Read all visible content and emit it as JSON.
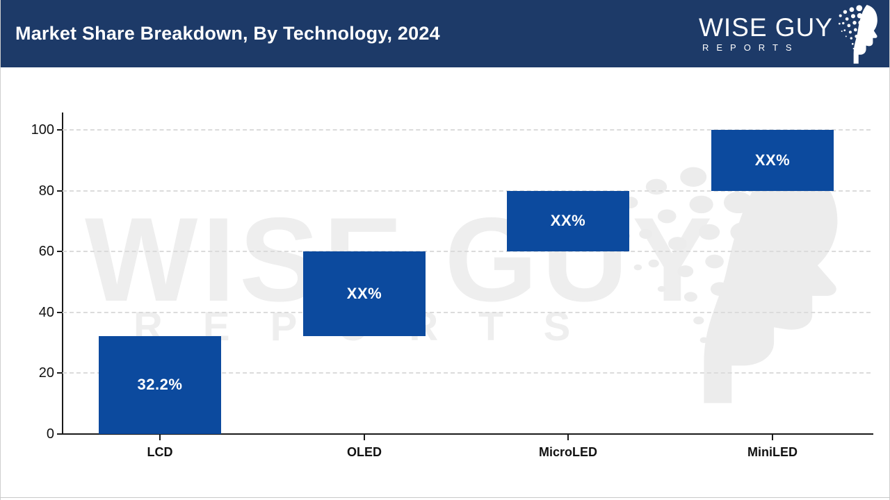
{
  "header": {
    "title": "Market Share Breakdown, By Technology, 2024",
    "background_color": "#1d3a68",
    "logo": {
      "name": "WISE GUY",
      "subtitle": "REPORTS",
      "icon": "dotted-head-profile"
    }
  },
  "watermark": {
    "line1": "WISE GUY",
    "line2": "REPORTS",
    "color": "#eeeeee"
  },
  "chart_data": {
    "type": "bar",
    "variant": "waterfall",
    "title": "Market Share Breakdown, By Technology, 2024",
    "categories": [
      "LCD",
      "OLED",
      "MicroLED",
      "MiniLED"
    ],
    "segments": [
      {
        "category": "LCD",
        "start": 0,
        "end": 32.2,
        "label": "32.2%"
      },
      {
        "category": "OLED",
        "start": 32.2,
        "end": 60,
        "label": "XX%"
      },
      {
        "category": "MicroLED",
        "start": 60,
        "end": 80,
        "label": "XX%"
      },
      {
        "category": "MiniLED",
        "start": 80,
        "end": 100,
        "label": "XX%"
      }
    ],
    "xlabel": "",
    "ylabel": "",
    "ylim": [
      0,
      100
    ],
    "y_ticks": [
      0,
      20,
      40,
      60,
      80,
      100
    ],
    "grid": "horizontal-dashed",
    "legend": "none",
    "bar_color": "#0c4a9e",
    "bar_label_color": "#ffffff",
    "axis_color": "#1a1a1a",
    "gridline_color": "#dbdbdb"
  }
}
